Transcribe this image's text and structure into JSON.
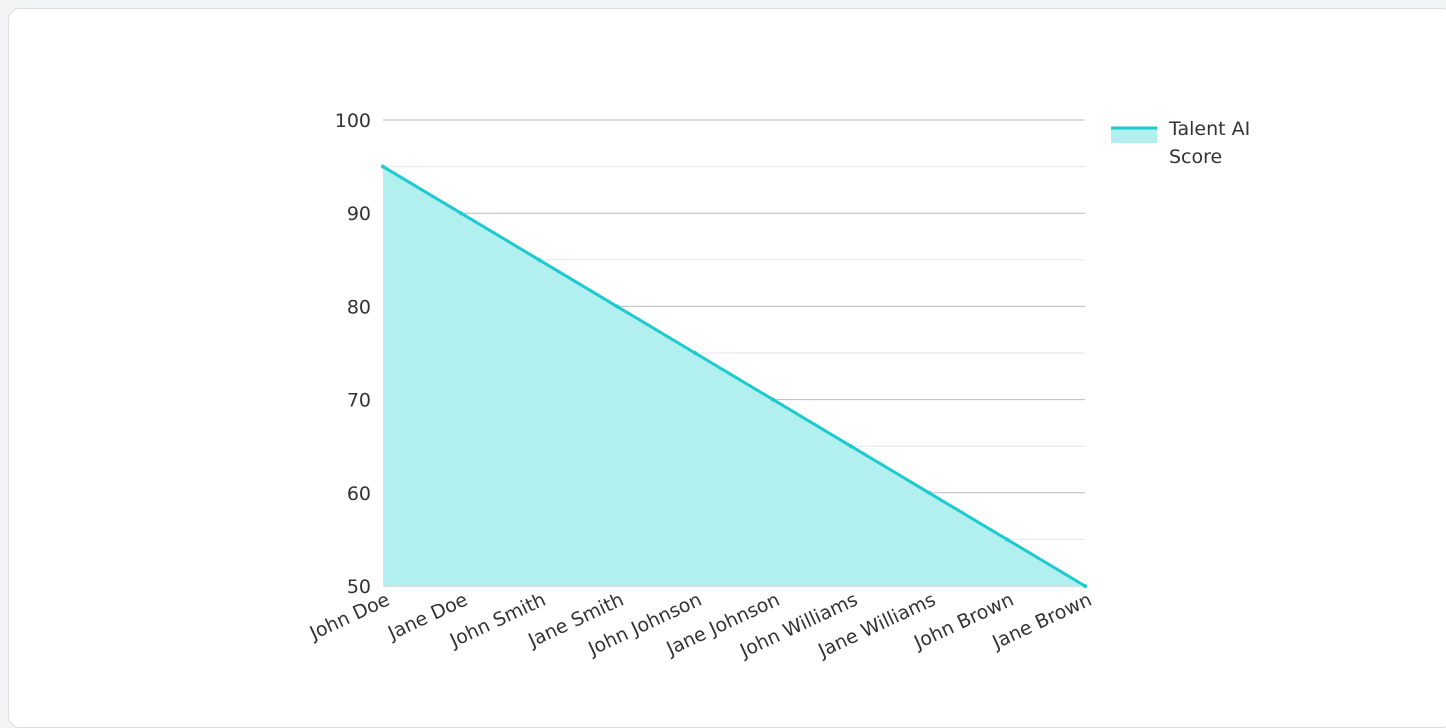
{
  "chart_data": {
    "type": "area",
    "categories": [
      "John Doe",
      "Jane Doe",
      "John Smith",
      "Jane Smith",
      "John Johnson",
      "Jane Johnson",
      "John Williams",
      "Jane Williams",
      "John Brown",
      "Jane Brown"
    ],
    "series": [
      {
        "name": "Talent AI Score",
        "values": [
          95,
          90,
          85,
          80,
          75,
          70,
          65,
          60,
          55,
          50
        ],
        "color": "#1ccbd0",
        "fill": "#b2efef"
      }
    ],
    "legend": {
      "position": "right",
      "lines": [
        "Talent AI",
        "Score"
      ]
    },
    "yticks": [
      "100",
      "90",
      "80",
      "70",
      "60",
      "50"
    ],
    "ylim": [
      50,
      100
    ],
    "grid": true,
    "title": "",
    "xlabel": "",
    "ylabel": ""
  }
}
